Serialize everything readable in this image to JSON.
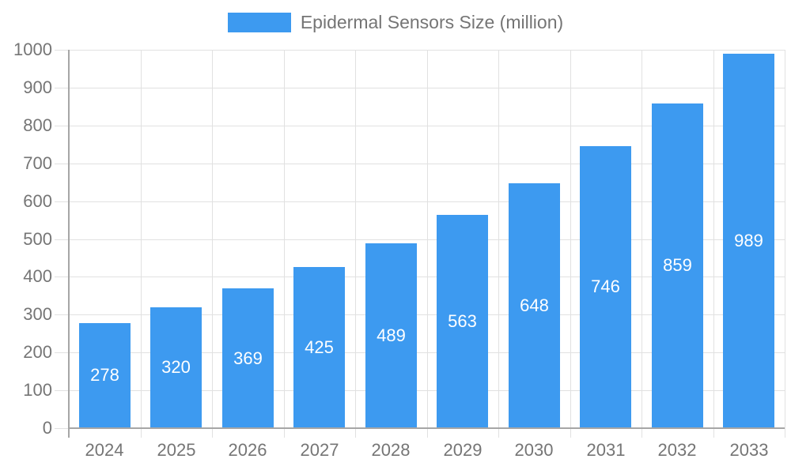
{
  "chart_data": {
    "type": "bar",
    "title": "Epidermal Sensors Size (million)",
    "legend": [
      "Epidermal Sensors Size (million)"
    ],
    "legend_position": "top",
    "categories": [
      "2024",
      "2025",
      "2026",
      "2027",
      "2028",
      "2029",
      "2030",
      "2031",
      "2032",
      "2033"
    ],
    "series": [
      {
        "name": "Epidermal Sensors Size (million)",
        "values": [
          278,
          320,
          369,
          425,
          489,
          563,
          648,
          746,
          859,
          989
        ]
      }
    ],
    "xlabel": "",
    "ylabel": "",
    "ylim": [
      0,
      1000
    ],
    "ytick_step": 100,
    "grid": true,
    "value_labels_position": "inside-center"
  },
  "colors": {
    "bar": "#3D9AF0",
    "gridline": "#E1E1E1",
    "axis": "#A6A6A6",
    "tick_text": "#757575",
    "legend_text": "#757575",
    "value_label_text": "#FFFFFF",
    "background": "#FFFFFF"
  }
}
